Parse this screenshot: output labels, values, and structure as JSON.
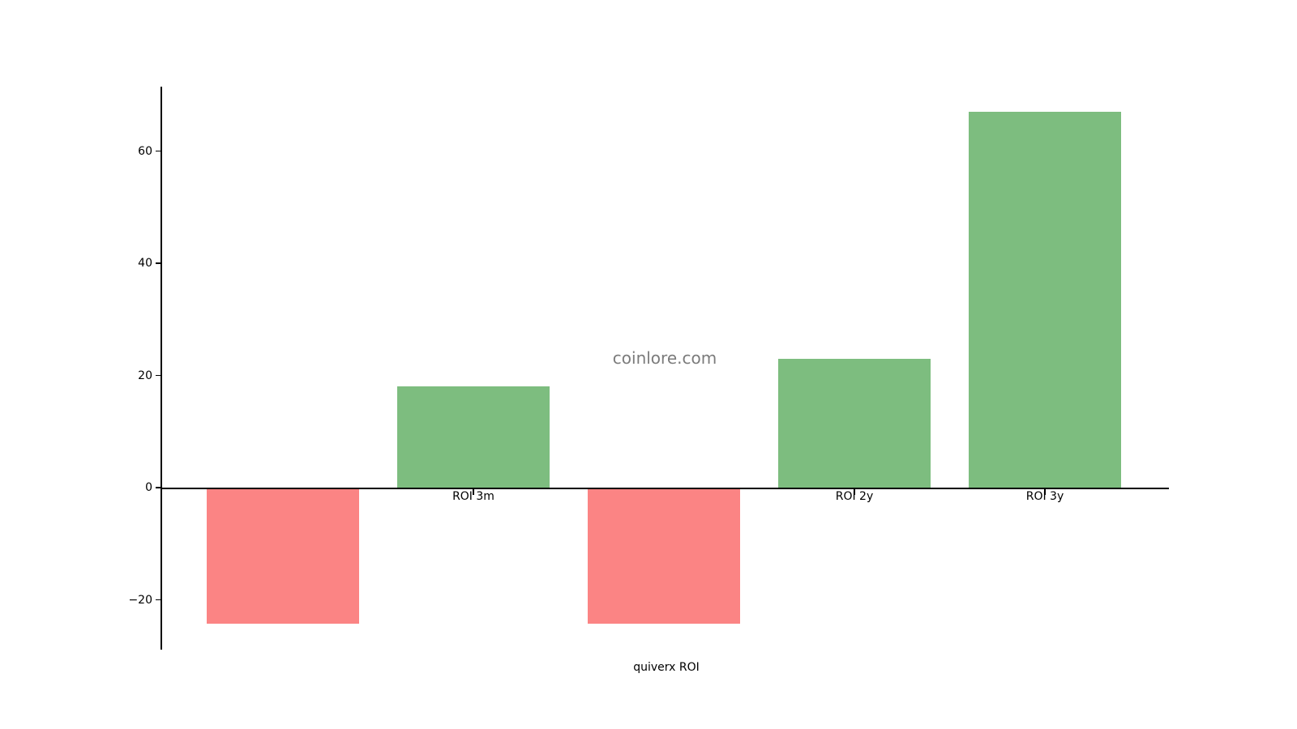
{
  "watermark": "coinlore.com",
  "chart_data": {
    "type": "bar",
    "title": "",
    "xlabel": "quiverx ROI",
    "ylabel": "",
    "categories": [
      "",
      "ROI 3m",
      "",
      "ROI 2y",
      "ROI 3y"
    ],
    "values": [
      -24,
      18,
      -24,
      23,
      67
    ],
    "bar_colors": [
      "#fb8484",
      "#7dbd7f",
      "#fb8484",
      "#7dbd7f",
      "#7dbd7f"
    ],
    "yticks": [
      60,
      40,
      20,
      0,
      -20
    ],
    "ytick_labels": [
      "60",
      "40",
      "20",
      "0",
      "−20"
    ],
    "ylim": [
      -29,
      71.5
    ],
    "grid": false,
    "legend_position": "none",
    "axis_color": "#000000",
    "watermark_color": "#7b7b7b",
    "negative_color": "#fb8484",
    "positive_color": "#7dbd7f"
  }
}
